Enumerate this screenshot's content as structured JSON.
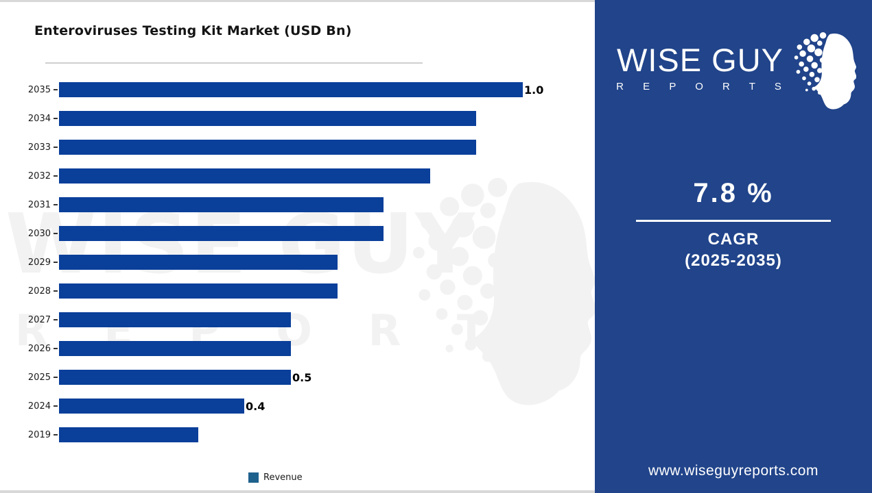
{
  "chart": {
    "title": "Enteroviruses Testing Kit Market (USD Bn)"
  },
  "chart_data": {
    "type": "bar",
    "orientation": "horizontal",
    "title": "Enteroviruses Testing Kit Market (USD Bn)",
    "categories": [
      "2035",
      "2034",
      "2033",
      "2032",
      "2031",
      "2030",
      "2029",
      "2028",
      "2027",
      "2026",
      "2025",
      "2024",
      "2019"
    ],
    "values": [
      1.0,
      0.9,
      0.9,
      0.8,
      0.7,
      0.7,
      0.6,
      0.6,
      0.5,
      0.5,
      0.5,
      0.4,
      0.3
    ],
    "unit": "USD Bn",
    "value_labels": {
      "2035": "1.0",
      "2025": "0.5",
      "2024": "0.4"
    },
    "legend": [
      {
        "label": "Revenue",
        "color": "#1f618d"
      }
    ],
    "legend_position": "bottom-center",
    "bar_color": "#0a3f9a",
    "xlim": [
      0,
      1.05
    ],
    "grid": false
  },
  "legend": {
    "label": "Revenue"
  },
  "watermark": {
    "line1": "WISE GUY",
    "line2": "R E P O R T S"
  },
  "sidebar": {
    "background_color": "#21448a",
    "logo_line1": "WISE GUY",
    "logo_line2": "R E P O R T S",
    "cagr_value": "7.8 %",
    "cagr_label": "CAGR",
    "cagr_period": "(2025-2035)",
    "website": "www.wiseguyreports.com"
  }
}
